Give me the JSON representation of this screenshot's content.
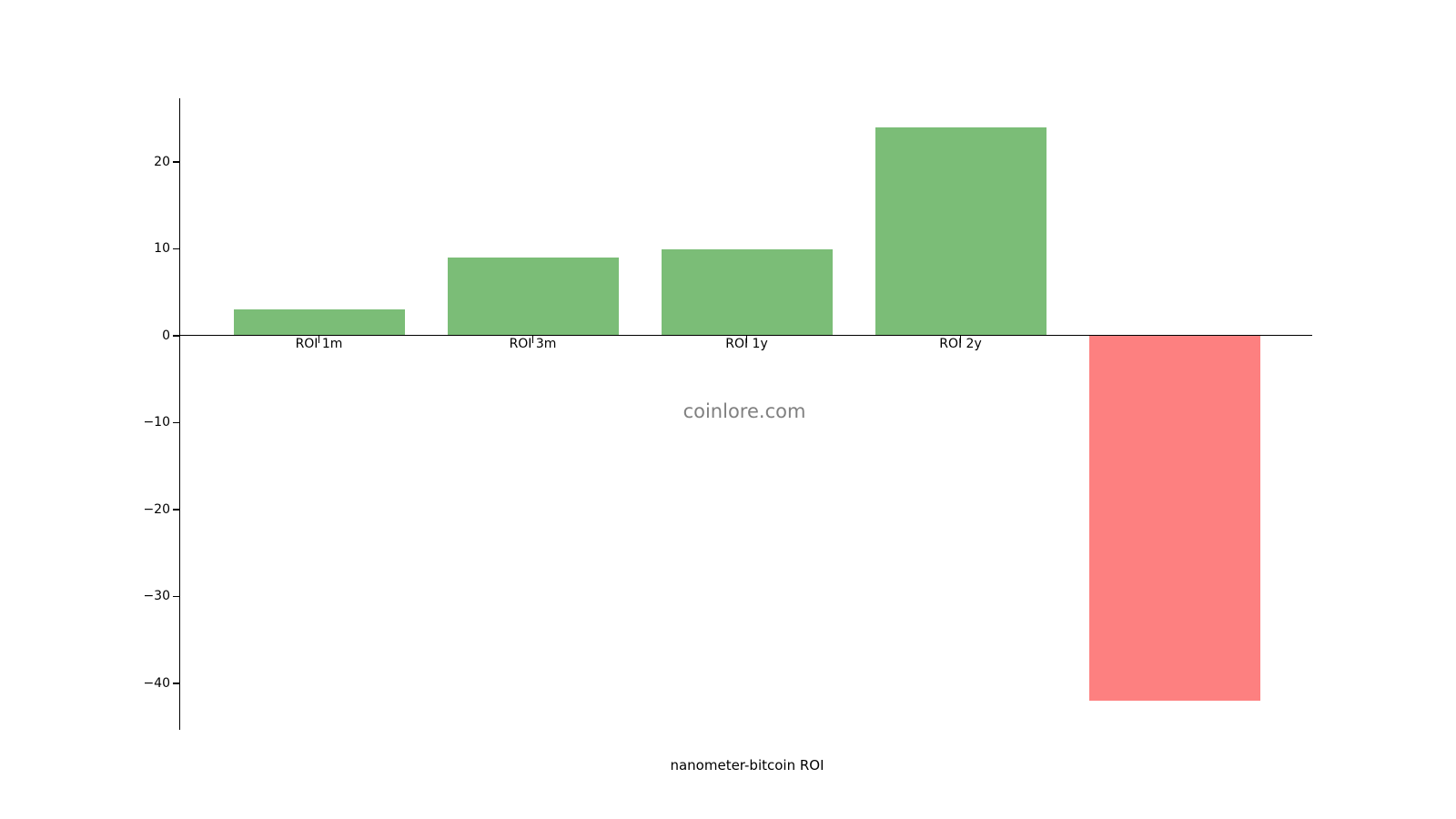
{
  "chart": {
    "xlabel": "nanometer-bitcoin ROI",
    "watermark": "coinlore.com"
  },
  "chart_data": {
    "type": "bar",
    "title": "",
    "xlabel": "nanometer-bitcoin ROI",
    "ylabel": "",
    "categories": [
      "ROI 1m",
      "ROI 3m",
      "ROI 1y",
      "ROI 2y",
      ""
    ],
    "values": [
      3,
      9,
      10,
      24,
      -42
    ],
    "bar_colors": [
      "#7bbd77",
      "#7bbd77",
      "#7bbd77",
      "#7bbd77",
      "#fd8080"
    ],
    "positive_color": "#7bbd77",
    "negative_color": "#fd8080",
    "ylim": [
      -45.3,
      27.3
    ],
    "yticks": [
      20,
      10,
      0,
      -10,
      -20,
      -30,
      -40
    ],
    "ytick_labels": [
      "20",
      "10",
      "0",
      "−10",
      "−20",
      "−30",
      "−40"
    ],
    "grid": false,
    "legend_position": "none",
    "watermark": "coinlore.com",
    "axis_color": "#000000",
    "text_color": "#000000",
    "watermark_color": "#808080"
  }
}
